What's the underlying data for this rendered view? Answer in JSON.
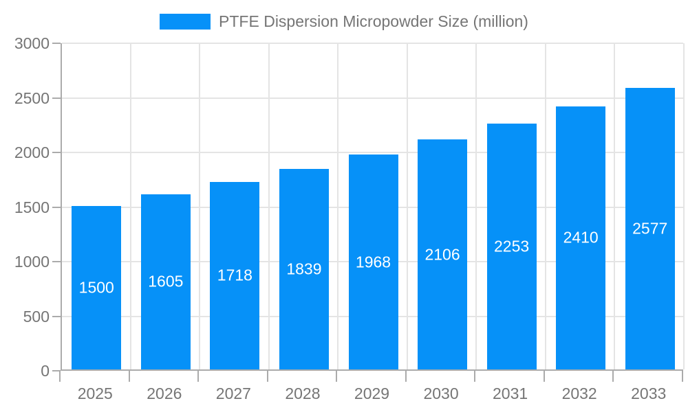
{
  "chart_data": {
    "type": "bar",
    "title": "PTFE Dispersion Micropowder Size (million)",
    "categories": [
      "2025",
      "2026",
      "2027",
      "2028",
      "2029",
      "2030",
      "2031",
      "2032",
      "2033"
    ],
    "values": [
      1500,
      1605,
      1718,
      1839,
      1968,
      2106,
      2253,
      2410,
      2577
    ],
    "xlabel": "",
    "ylabel": "",
    "ylim": [
      0,
      3000
    ],
    "yticks": [
      0,
      500,
      1000,
      1500,
      2000,
      2500,
      3000
    ],
    "grid": true,
    "legend_position": "top-center",
    "value_labels": "inside-center",
    "colors": {
      "bar": "#0691f8",
      "bar_label_text": "#ffffff",
      "axis_text": "#757575",
      "grid_line": "#e4e4e4",
      "axis_line": "#ababab",
      "background": "#ffffff"
    }
  }
}
